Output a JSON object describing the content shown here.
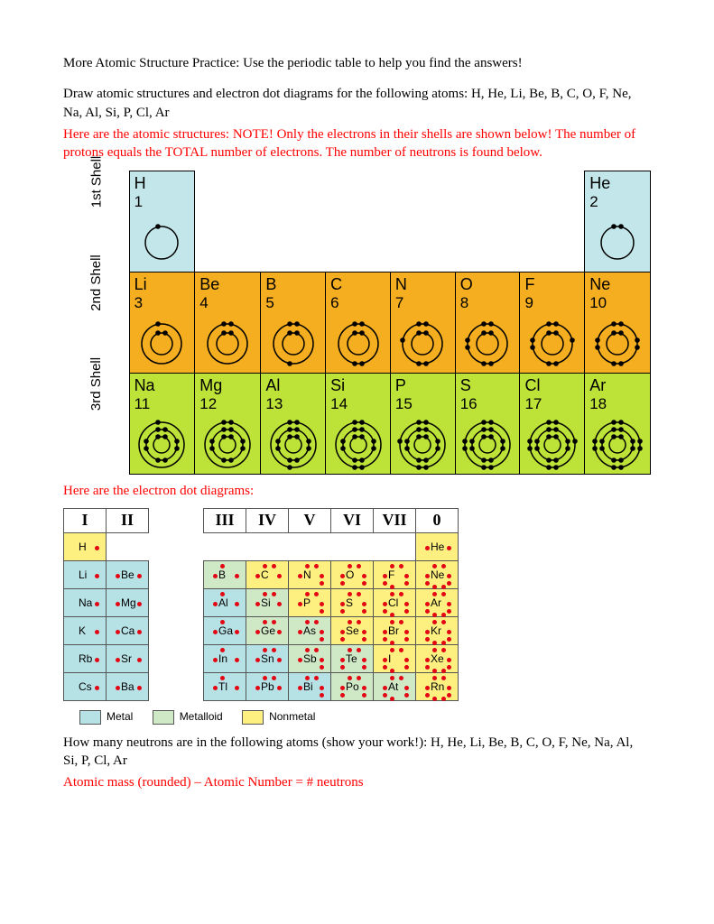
{
  "intro": {
    "line1": "More Atomic Structure Practice: Use the periodic table to help you find the answers!",
    "line2": "Draw atomic structures and electron dot diagrams for the following atoms: H, He, Li, Be, B, C, O, F, Ne, Na, Al, Si, P, Cl, Ar",
    "note": "Here are the atomic structures: NOTE! Only the electrons in their shells are shown below!  The number of protons equals the TOTAL number of electrons.  The number of neutrons is found below."
  },
  "colors": {
    "shell1_bg": "#c2e6ea",
    "shell2_bg": "#f6ae21",
    "shell3_bg": "#bde338",
    "metal": "#b6e1e5",
    "metalloid": "#cfe9c7",
    "nonmetal": "#fdf080",
    "red_text": "#ff0000",
    "dot_color": "#e30613"
  },
  "shell_table": {
    "row_labels": [
      "1st Shell",
      "2nd Shell",
      "3rd Shell"
    ],
    "row1": [
      {
        "sym": "H",
        "num": 1,
        "shells": [
          1
        ]
      },
      {
        "sym": "He",
        "num": 2,
        "shells": [
          2
        ]
      }
    ],
    "row2": [
      {
        "sym": "Li",
        "num": 3,
        "shells": [
          2,
          1
        ]
      },
      {
        "sym": "Be",
        "num": 4,
        "shells": [
          2,
          2
        ]
      },
      {
        "sym": "B",
        "num": 5,
        "shells": [
          2,
          3
        ]
      },
      {
        "sym": "C",
        "num": 6,
        "shells": [
          2,
          4
        ]
      },
      {
        "sym": "N",
        "num": 7,
        "shells": [
          2,
          5
        ]
      },
      {
        "sym": "O",
        "num": 8,
        "shells": [
          2,
          6
        ]
      },
      {
        "sym": "F",
        "num": 9,
        "shells": [
          2,
          7
        ]
      },
      {
        "sym": "Ne",
        "num": 10,
        "shells": [
          2,
          8
        ]
      }
    ],
    "row3": [
      {
        "sym": "Na",
        "num": 11,
        "shells": [
          2,
          8,
          1
        ]
      },
      {
        "sym": "Mg",
        "num": 12,
        "shells": [
          2,
          8,
          2
        ]
      },
      {
        "sym": "Al",
        "num": 13,
        "shells": [
          2,
          8,
          3
        ]
      },
      {
        "sym": "Si",
        "num": 14,
        "shells": [
          2,
          8,
          4
        ]
      },
      {
        "sym": "P",
        "num": 15,
        "shells": [
          2,
          8,
          5
        ]
      },
      {
        "sym": "S",
        "num": 16,
        "shells": [
          2,
          8,
          6
        ]
      },
      {
        "sym": "Cl",
        "num": 17,
        "shells": [
          2,
          8,
          7
        ]
      },
      {
        "sym": "Ar",
        "num": 18,
        "shells": [
          2,
          8,
          8
        ]
      }
    ]
  },
  "dot_heading": "Here are the electron dot diagrams:",
  "dot_table": {
    "headers": [
      "I",
      "II",
      "",
      "III",
      "IV",
      "V",
      "VI",
      "VII",
      "0"
    ],
    "rows": [
      [
        {
          "s": "H",
          "c": "nonmetal",
          "d": 1
        },
        null,
        null,
        null,
        null,
        null,
        null,
        null,
        {
          "s": "He",
          "c": "nonmetal",
          "d": 2
        }
      ],
      [
        {
          "s": "Li",
          "c": "metal",
          "d": 1
        },
        {
          "s": "Be",
          "c": "metal",
          "d": 2
        },
        null,
        {
          "s": "B",
          "c": "metalloid",
          "d": 3
        },
        {
          "s": "C",
          "c": "nonmetal",
          "d": 4
        },
        {
          "s": "N",
          "c": "nonmetal",
          "d": 5
        },
        {
          "s": "O",
          "c": "nonmetal",
          "d": 6
        },
        {
          "s": "F",
          "c": "nonmetal",
          "d": 7
        },
        {
          "s": "Ne",
          "c": "nonmetal",
          "d": 8
        }
      ],
      [
        {
          "s": "Na",
          "c": "metal",
          "d": 1
        },
        {
          "s": "Mg",
          "c": "metal",
          "d": 2
        },
        null,
        {
          "s": "Al",
          "c": "metal",
          "d": 3
        },
        {
          "s": "Si",
          "c": "metalloid",
          "d": 4
        },
        {
          "s": "P",
          "c": "nonmetal",
          "d": 5
        },
        {
          "s": "S",
          "c": "nonmetal",
          "d": 6
        },
        {
          "s": "Cl",
          "c": "nonmetal",
          "d": 7
        },
        {
          "s": "Ar",
          "c": "nonmetal",
          "d": 8
        }
      ],
      [
        {
          "s": "K",
          "c": "metal",
          "d": 1
        },
        {
          "s": "Ca",
          "c": "metal",
          "d": 2
        },
        null,
        {
          "s": "Ga",
          "c": "metal",
          "d": 3
        },
        {
          "s": "Ge",
          "c": "metalloid",
          "d": 4
        },
        {
          "s": "As",
          "c": "metalloid",
          "d": 5
        },
        {
          "s": "Se",
          "c": "nonmetal",
          "d": 6
        },
        {
          "s": "Br",
          "c": "nonmetal",
          "d": 7
        },
        {
          "s": "Kr",
          "c": "nonmetal",
          "d": 8
        }
      ],
      [
        {
          "s": "Rb",
          "c": "metal",
          "d": 1
        },
        {
          "s": "Sr",
          "c": "metal",
          "d": 2
        },
        null,
        {
          "s": "In",
          "c": "metal",
          "d": 3
        },
        {
          "s": "Sn",
          "c": "metal",
          "d": 4
        },
        {
          "s": "Sb",
          "c": "metalloid",
          "d": 5
        },
        {
          "s": "Te",
          "c": "metalloid",
          "d": 6
        },
        {
          "s": "I",
          "c": "nonmetal",
          "d": 7
        },
        {
          "s": "Xe",
          "c": "nonmetal",
          "d": 8
        }
      ],
      [
        {
          "s": "Cs",
          "c": "metal",
          "d": 1
        },
        {
          "s": "Ba",
          "c": "metal",
          "d": 2
        },
        null,
        {
          "s": "Tl",
          "c": "metal",
          "d": 3
        },
        {
          "s": "Pb",
          "c": "metal",
          "d": 4
        },
        {
          "s": "Bi",
          "c": "metal",
          "d": 5
        },
        {
          "s": "Po",
          "c": "metalloid",
          "d": 6
        },
        {
          "s": "At",
          "c": "metalloid",
          "d": 7
        },
        {
          "s": "Rn",
          "c": "nonmetal",
          "d": 8
        }
      ]
    ],
    "legend": [
      "Metal",
      "Metalloid",
      "Nonmetal"
    ]
  },
  "footer": {
    "q": "How many neutrons are in the following atoms (show your work!): H, He, Li, Be, B, C, O, F, Ne, Na, Al, Si, P, Cl, Ar",
    "a": "Atomic mass (rounded) – Atomic Number = # neutrons"
  }
}
